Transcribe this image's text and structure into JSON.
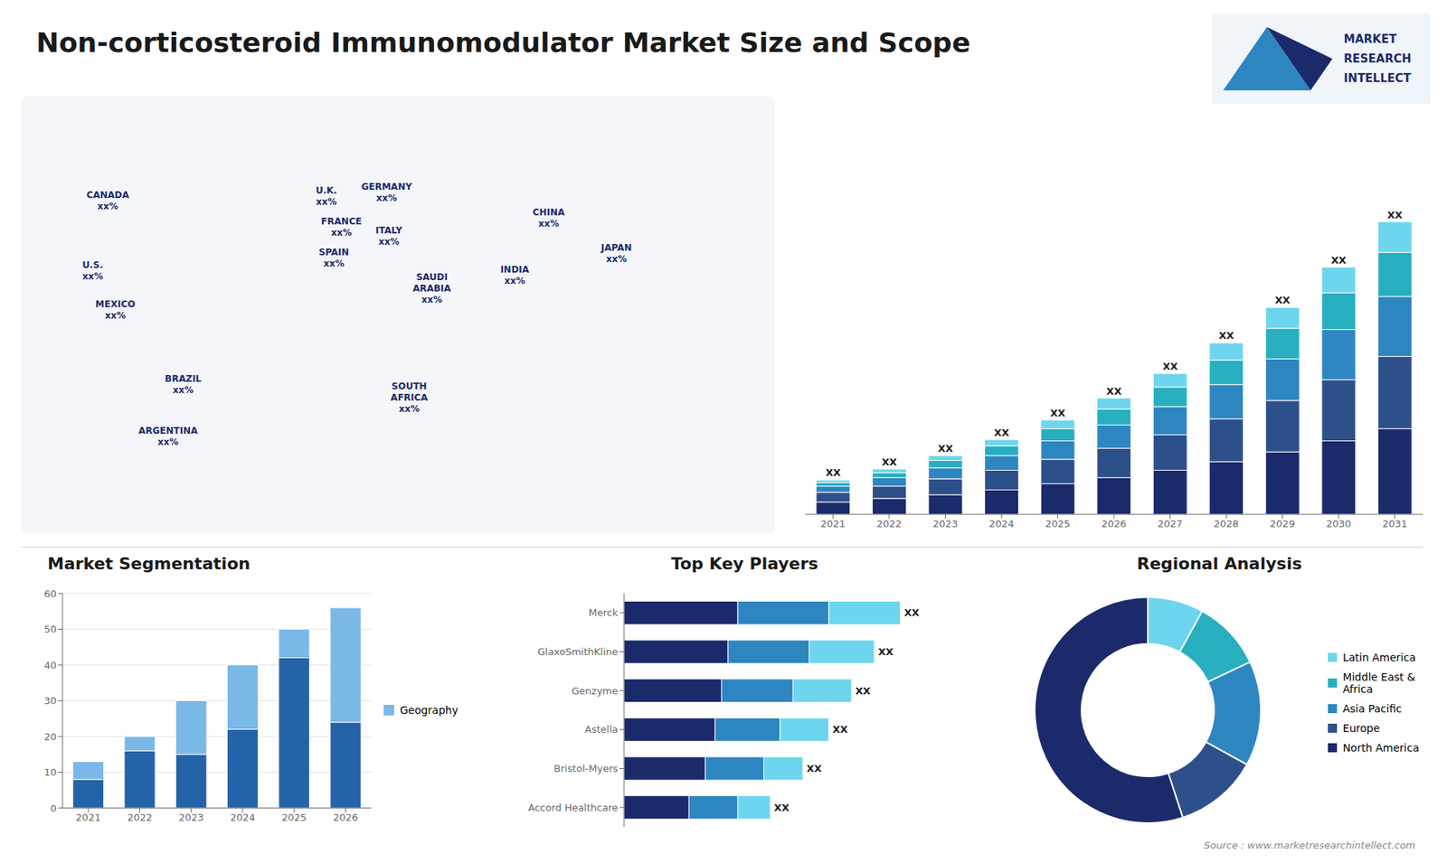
{
  "chart_data": [
    {
      "type": "bar",
      "title": "Non-corticosteroid Immunomodulator Market Size and Scope",
      "stacked": true,
      "tick_labels": "x",
      "categories": [
        "2021",
        "2022",
        "2023",
        "2024",
        "2025",
        "2026",
        "2027",
        "2028",
        "2029",
        "2030",
        "2031"
      ],
      "series": [
        {
          "color": "#1b2a6b",
          "values": [
            1.0,
            1.3,
            1.6,
            2.0,
            2.5,
            3.0,
            3.6,
            4.3,
            5.1,
            6.0,
            7.0
          ]
        },
        {
          "color": "#2e508a",
          "values": [
            0.8,
            1.0,
            1.3,
            1.6,
            2.0,
            2.4,
            2.9,
            3.5,
            4.2,
            5.0,
            5.9
          ]
        },
        {
          "color": "#2e86c1",
          "values": [
            0.5,
            0.7,
            0.9,
            1.2,
            1.5,
            1.9,
            2.3,
            2.8,
            3.4,
            4.1,
            4.9
          ]
        },
        {
          "color": "#27afc0",
          "values": [
            0.3,
            0.4,
            0.6,
            0.8,
            1.0,
            1.3,
            1.6,
            2.0,
            2.5,
            3.0,
            3.6
          ]
        },
        {
          "color": "#6dd5ed",
          "values": [
            0.2,
            0.3,
            0.4,
            0.5,
            0.7,
            0.9,
            1.1,
            1.4,
            1.7,
            2.1,
            2.5
          ]
        }
      ],
      "total_labels": [
        "XX",
        "XX",
        "XX",
        "XX",
        "XX",
        "XX",
        "XX",
        "XX",
        "XX",
        "XX",
        "XX"
      ],
      "ylim": [
        0,
        31.07
      ],
      "annotations": [
        "Source : www.marketresearchintellect.com"
      ]
    },
    {
      "type": "map",
      "labels": [
        "U.S.\nxx%",
        "CANADA\nxx%",
        "MEXICO\nxx%",
        "BRAZIL\nxx%",
        "ARGENTINA\nxx%",
        "U.K.\nxx%",
        "FRANCE\nxx%",
        "SPAIN\nxx%",
        "GERMANY\nxx%",
        "ITALY\nxx%",
        "SAUDI\nARABIA\nxx%",
        "SOUTH\nAFRICA\nxx%",
        "CHINA\nxx%",
        "INDIA\nxx%",
        "JAPAN\nxx%"
      ]
    },
    {
      "type": "logo",
      "annotations": [
        "MARKET",
        "RESEARCH",
        "INTELLECT"
      ]
    },
    {
      "type": "bar",
      "title": "Market Segmentation",
      "stacked": true,
      "grid": true,
      "legend": "right",
      "categories": [
        "2021",
        "2022",
        "2023",
        "2024",
        "2025",
        "2026"
      ],
      "series": [
        {
          "color": "#2563a8",
          "values": [
            8,
            16,
            15,
            22,
            42,
            24
          ]
        },
        {
          "name": "Geography",
          "color": "#7ab8e8",
          "values": [
            5,
            4,
            15,
            18,
            8,
            32
          ]
        }
      ],
      "ylim": [
        0,
        60
      ],
      "yticks": [
        0,
        10,
        20,
        30,
        40,
        50,
        60
      ]
    },
    {
      "type": "bar",
      "title": "Top Key Players",
      "orientation": "horizontal",
      "stacked": true,
      "tick_labels": "y",
      "categories": [
        "Accord Healthcare",
        "Bristol-Myers",
        "Astella",
        "Genzyme",
        "GlaxoSmithKline",
        "Merck"
      ],
      "series": [
        {
          "color": "#1b2a6b",
          "values": [
            2.0,
            2.5,
            2.8,
            3.0,
            3.2,
            3.5
          ]
        },
        {
          "color": "#2e86c1",
          "values": [
            1.5,
            1.8,
            2.0,
            2.2,
            2.5,
            2.8
          ]
        },
        {
          "color": "#6dd5ed",
          "values": [
            1.0,
            1.2,
            1.5,
            1.8,
            2.0,
            2.2
          ]
        }
      ],
      "total_labels": [
        "XX",
        "XX",
        "XX",
        "XX",
        "XX",
        "XX"
      ],
      "xlim": [
        0,
        10.2
      ]
    },
    {
      "type": "pie",
      "title": "Regional Analysis",
      "legend": "right",
      "categories": [
        "Latin America",
        "Middle East &\nAfrica",
        "Asia Pacific",
        "Europe",
        "North America"
      ],
      "values": [
        8,
        10,
        15,
        12,
        55
      ],
      "colors": [
        "#6dd5ed",
        "#27afc0",
        "#2e86c1",
        "#2e508a",
        "#1b2a6b"
      ]
    }
  ]
}
